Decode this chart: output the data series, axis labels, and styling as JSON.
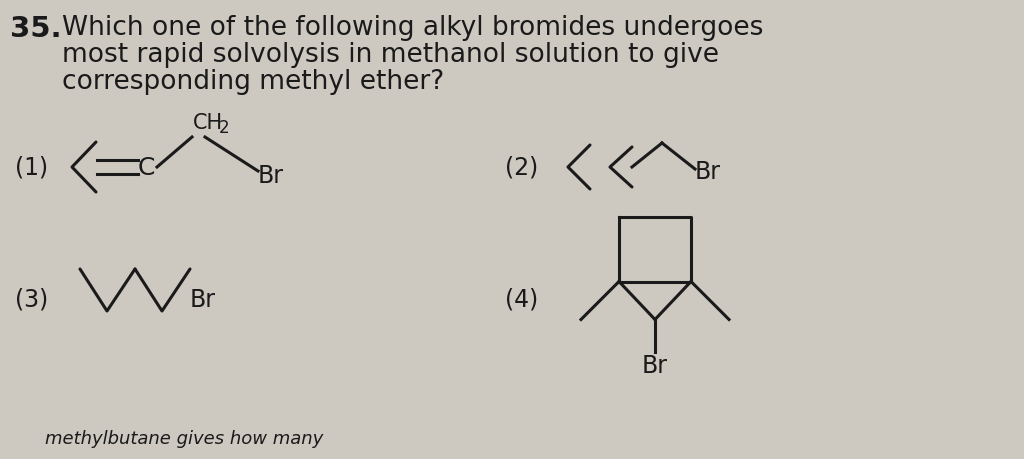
{
  "bg_color": "#cdc8c0",
  "text_color": "#1a1a1a",
  "question_number": "35.",
  "question_text_line1": "Which one of the following alkyl bromides undergoes",
  "question_text_line2": "most rapid solvolysis in methanol solution to give",
  "question_text_line3": "corresponding methyl ether?",
  "bottom_text": "methylbutane gives how many",
  "title_fontsize": 19,
  "label_fontsize": 17,
  "structure_linewidth": 2.2
}
